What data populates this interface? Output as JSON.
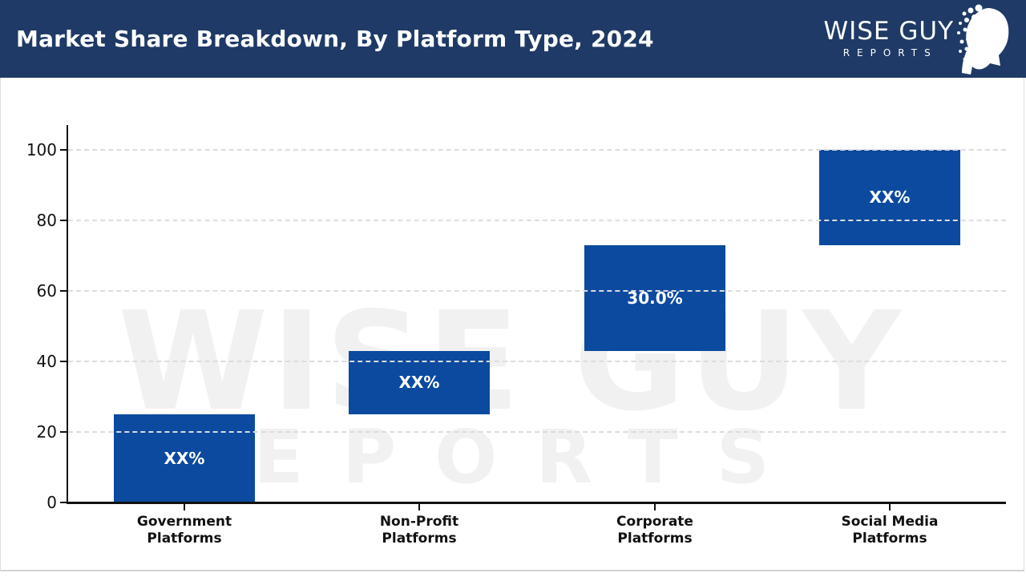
{
  "header": {
    "title": "Market Share Breakdown, By Platform Type, 2024",
    "brand": {
      "name": "WISE GUY",
      "sub": "REPORTS"
    }
  },
  "watermark": {
    "name": "WISE GUY",
    "sub": "REPORTS"
  },
  "colors": {
    "header_bg": "#1F3A66",
    "bar_fill": "#0B4A9F",
    "bar_label": "#FFFFFF",
    "gridline": "#DCDCDC",
    "axis": "#111111",
    "text": "#111111",
    "watermark": "#F1F1F1"
  },
  "chart_data": {
    "type": "bar",
    "variant": "waterfall (floating cumulative segments)",
    "title": "Market Share Breakdown, By Platform Type, 2024",
    "categories": [
      "Government\nPlatforms",
      "Non-Profit\nPlatforms",
      "Corporate\nPlatforms",
      "Social Media\nPlatforms"
    ],
    "bars": [
      {
        "category": "Government Platforms",
        "start": 0,
        "end": 25,
        "height": 25,
        "label": "XX%"
      },
      {
        "category": "Non-Profit Platforms",
        "start": 25,
        "end": 43,
        "height": 18,
        "label": "XX%"
      },
      {
        "category": "Corporate Platforms",
        "start": 43,
        "end": 73,
        "height": 30,
        "label": "30.0%"
      },
      {
        "category": "Social Media Platforms",
        "start": 73,
        "end": 100,
        "height": 27,
        "label": "XX%"
      }
    ],
    "yticks": [
      0,
      20,
      40,
      60,
      80,
      100
    ],
    "ylim": [
      0,
      107
    ],
    "xlabel": "",
    "ylabel": "",
    "grid": "horizontal dashed",
    "legend": "none"
  }
}
